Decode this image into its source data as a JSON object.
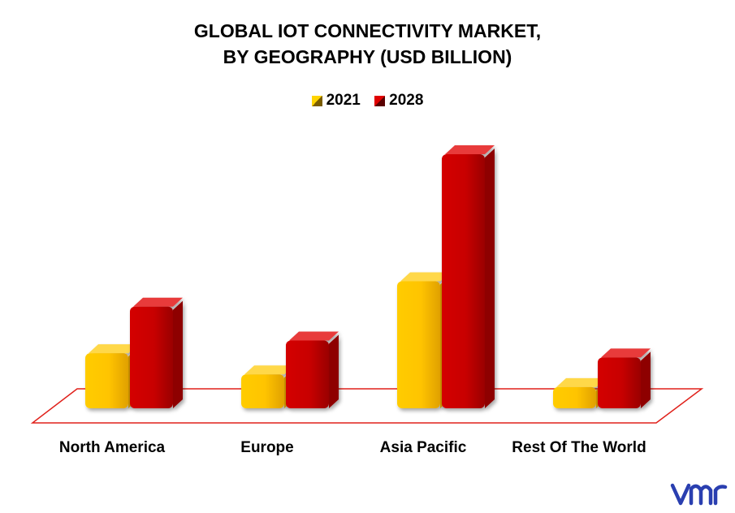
{
  "title_line1": "GLOBAL IOT CONNECTIVITY MARKET,",
  "title_line2": "BY GEOGRAPHY (USD BILLION)",
  "colors": {
    "2021": "#ffc000",
    "2028": "#cc0000",
    "floor": "#e0201a"
  },
  "chart_data": {
    "type": "bar",
    "title": "GLOBAL IOT CONNECTIVITY MARKET, BY GEOGRAPHY (USD BILLION)",
    "categories": [
      "North America",
      "Europe",
      "Asia Pacific",
      "Rest Of The World"
    ],
    "series": [
      {
        "name": "2021",
        "values": [
          6.5,
          4.0,
          15.0,
          2.5
        ]
      },
      {
        "name": "2028",
        "values": [
          12.0,
          8.0,
          30.0,
          6.0
        ]
      }
    ],
    "xlabel": "",
    "ylabel": "",
    "ylim": [
      0,
      32
    ],
    "legend": "top-center",
    "grid": false
  }
}
